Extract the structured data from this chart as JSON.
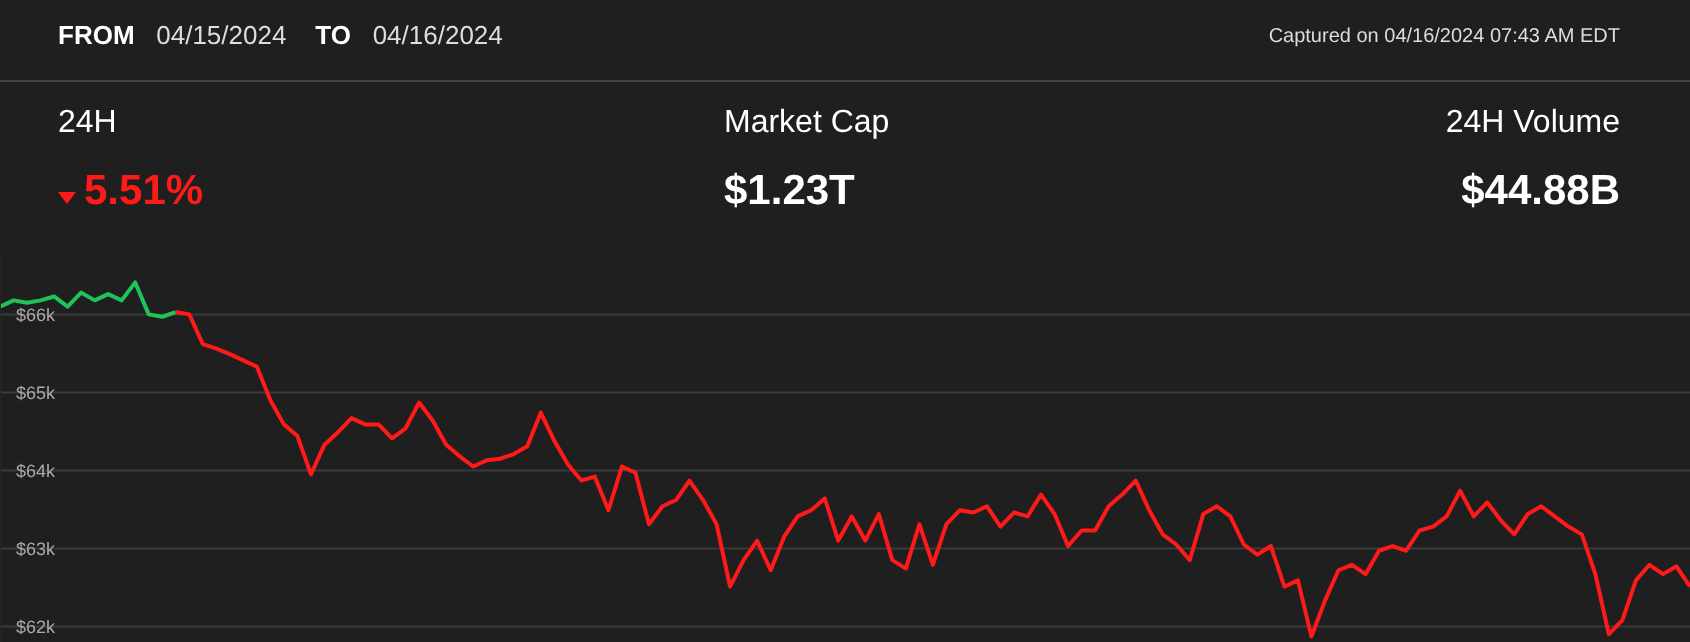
{
  "chart_data": {
    "type": "line",
    "annotations": [
      "FROM",
      "04/15/2024",
      "TO",
      "04/16/2024",
      "Captured on 04/16/2024 07:43 AM EDT",
      "24H",
      "5.51%",
      "Market Cap",
      "$1.23T",
      "24H Volume",
      "$44.88B"
    ],
    "categories": [
      null,
      null,
      null,
      null,
      null,
      null,
      null,
      null,
      null,
      null,
      null,
      null,
      null,
      null,
      null,
      null,
      null,
      null,
      null,
      null,
      null,
      null,
      null,
      null,
      null,
      null,
      null,
      null,
      null,
      null,
      null,
      null,
      null,
      null,
      null,
      null,
      null,
      null,
      null,
      null,
      null,
      null,
      null,
      null,
      null,
      null,
      null,
      null,
      null,
      null,
      null,
      null,
      null,
      null,
      null,
      null,
      null,
      null,
      null,
      null,
      null,
      null,
      null,
      null,
      null,
      null,
      null,
      null,
      null,
      null,
      null,
      null,
      null,
      null,
      null,
      null,
      null,
      null,
      null,
      null,
      null,
      null,
      null,
      null,
      null,
      null,
      null,
      null,
      null,
      null,
      null,
      null,
      null,
      null,
      null,
      null,
      null,
      null,
      null,
      null,
      null,
      null,
      null,
      null,
      null,
      null,
      null,
      null,
      null,
      null,
      null,
      null,
      null,
      null,
      null,
      null,
      null,
      null,
      null,
      null,
      null,
      null,
      null,
      null,
      null,
      null
    ],
    "series": [
      {
        "color": "#1fc35a",
        "values": [
          66100,
          66180,
          66150,
          66180,
          66230,
          66100,
          66280,
          66180,
          66260,
          66180,
          66410,
          66000,
          65970,
          66030,
          null,
          null,
          null,
          null,
          null,
          null,
          null,
          null,
          null,
          null,
          null,
          null,
          null,
          null,
          null,
          null,
          null,
          null,
          null,
          null,
          null,
          null,
          null,
          null,
          null,
          null,
          null,
          null,
          null,
          null,
          null,
          null,
          null,
          null,
          null,
          null,
          null,
          null,
          null,
          null,
          null,
          null,
          null,
          null,
          null,
          null,
          null,
          null,
          null,
          null,
          null,
          null,
          null,
          null,
          null,
          null,
          null,
          null,
          null,
          null,
          null,
          null,
          null,
          null,
          null,
          null,
          null,
          null,
          null,
          null,
          null,
          null,
          null,
          null,
          null,
          null,
          null,
          null,
          null,
          null,
          null,
          null,
          null,
          null,
          null,
          null,
          null,
          null,
          null,
          null,
          null,
          null,
          null,
          null,
          null,
          null,
          null,
          null,
          null,
          null,
          null,
          null,
          null,
          null,
          null,
          null,
          null,
          null,
          null,
          null,
          null,
          null
        ]
      },
      {
        "color": "#ff1a1a",
        "values": [
          null,
          null,
          null,
          null,
          null,
          null,
          null,
          null,
          null,
          null,
          null,
          null,
          null,
          66030,
          66000,
          65620,
          65560,
          65490,
          65410,
          65330,
          64900,
          64590,
          64440,
          63950,
          64330,
          64490,
          64670,
          64590,
          64590,
          64410,
          64540,
          64870,
          64640,
          64330,
          64180,
          64050,
          64130,
          64150,
          64210,
          64310,
          64740,
          64380,
          64080,
          63870,
          63920,
          63490,
          64050,
          63970,
          63310,
          63540,
          63620,
          63870,
          63620,
          63310,
          62510,
          62850,
          63100,
          62720,
          63150,
          63410,
          63490,
          63640,
          63100,
          63410,
          63100,
          63440,
          62850,
          62740,
          63310,
          62790,
          63310,
          63490,
          63460,
          63540,
          63280,
          63460,
          63410,
          63690,
          63440,
          63030,
          63230,
          63230,
          63540,
          63690,
          63870,
          63490,
          63180,
          63050,
          62850,
          63440,
          63540,
          63410,
          63050,
          62920,
          63030,
          62510,
          62590,
          61870,
          62330,
          62720,
          62790,
          62670,
          62970,
          63030,
          62970,
          63230,
          63280,
          63410,
          63740,
          63410,
          63590,
          63360,
          63180,
          63440,
          63540,
          63410,
          63280,
          63180,
          62670,
          61900,
          62080,
          62590,
          62790,
          62670,
          62770,
          62510
        ]
      }
    ],
    "ylim": [
      61800,
      66800
    ],
    "yticks": [
      {
        "value": 62000,
        "label": "$62k"
      },
      {
        "value": 63000,
        "label": "$63k"
      },
      {
        "value": 64000,
        "label": "$64k"
      },
      {
        "value": 65000,
        "label": "$65k"
      },
      {
        "value": 66000,
        "label": "$66k"
      }
    ],
    "grid": "y",
    "legend": false,
    "tick_labels": "y",
    "marker": "none",
    "line_style": "solid"
  }
}
